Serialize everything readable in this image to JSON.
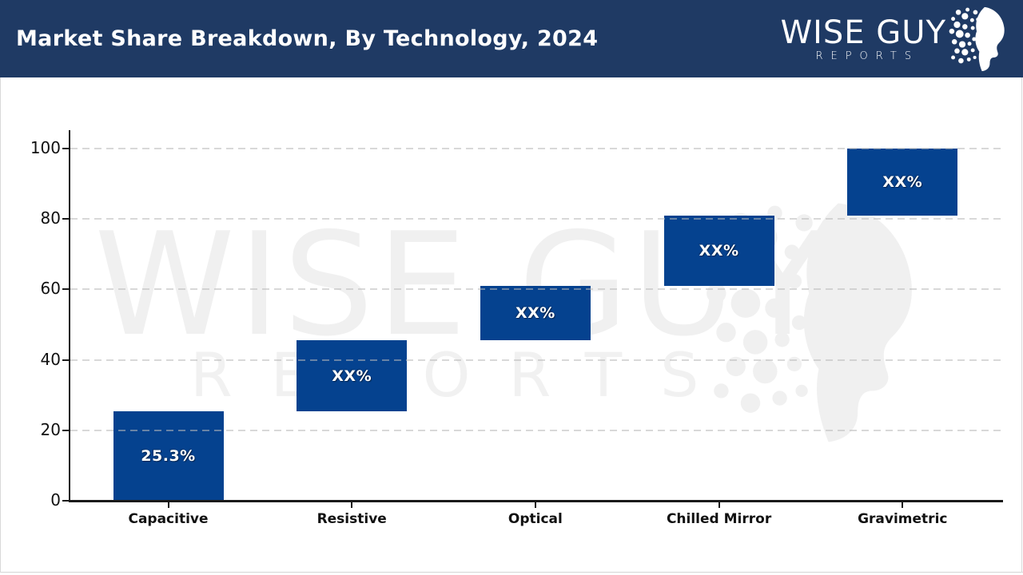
{
  "header": {
    "title": "Market Share Breakdown, By Technology, 2024",
    "logo_line1": "WISE GUY",
    "logo_line2": "REPORTS"
  },
  "watermark": {
    "line1": "WISE GUY",
    "line2": "REPORTS"
  },
  "colors": {
    "header_bg": "#1f3a64",
    "bar": "#05428f",
    "axis": "#1a1a1a",
    "gridline": "#bdbdbd",
    "bar_label": "#ffffff"
  },
  "chart_data": {
    "type": "bar",
    "subtype": "waterfall",
    "title": "Market Share Breakdown, By Technology, 2024",
    "xlabel": "",
    "ylabel": "",
    "ylim": [
      0,
      105
    ],
    "yticks": [
      0,
      20,
      40,
      60,
      80,
      100
    ],
    "grid": "horizontal-dashed",
    "legend": "none",
    "bar_color": "#05428f",
    "categories": [
      "Capacitive",
      "Resistive",
      "Optical",
      "Chilled Mirror",
      "Gravimetric"
    ],
    "segments": [
      {
        "category": "Capacitive",
        "start": 0,
        "end": 25.3,
        "label": "25.3%"
      },
      {
        "category": "Resistive",
        "start": 25.3,
        "end": 45.5,
        "label": "XX%"
      },
      {
        "category": "Optical",
        "start": 45.5,
        "end": 61,
        "label": "XX%"
      },
      {
        "category": "Chilled Mirror",
        "start": 61,
        "end": 81,
        "label": "XX%"
      },
      {
        "category": "Gravimetric",
        "start": 81,
        "end": 100,
        "label": "XX%"
      }
    ]
  }
}
